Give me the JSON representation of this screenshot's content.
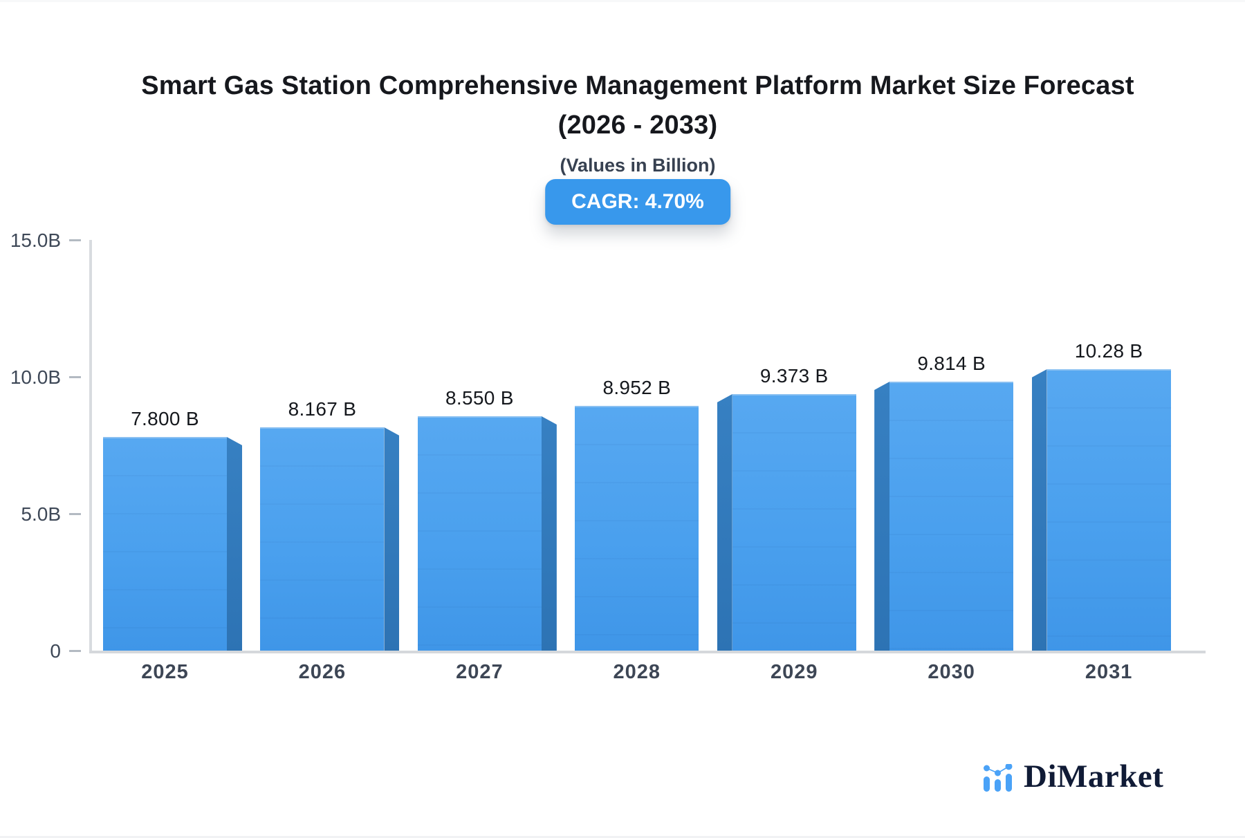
{
  "title": {
    "line1": "Smart Gas Station Comprehensive Management Platform Market Size Forecast",
    "line2": "(2026 - 2033)"
  },
  "subtitle": "(Values in Billion)",
  "badge": {
    "label": "CAGR: 4.70%"
  },
  "logo": {
    "text": "DiMarket",
    "icon": "mini-bar-chart-with-dots"
  },
  "colors": {
    "accent": "#3898ec",
    "badge_bg": "#3898ec",
    "badge_text": "#ffffff",
    "bar_face_top": "#57a8f1",
    "bar_face_mid": "#4aa0ee",
    "bar_face_bottom": "#3f96e8",
    "bar_side_top": "#3780c2",
    "bar_side_bottom": "#2d73b4",
    "axis_line": "#d6d9dd",
    "tick_dash": "#b3bac2",
    "title_text": "#16181d",
    "subtitle_text": "#374151",
    "axis_text": "#3e4857",
    "year_text": "#3d4655",
    "value_text": "#15181d",
    "logo_blue": "#4aa2f7",
    "logo_navy": "#101b36"
  },
  "chart_data": {
    "type": "bar",
    "title": "Smart Gas Station Comprehensive Management Platform Market Size Forecast (2026 - 2033)",
    "subtitle": "(Values in Billion)",
    "cagr": "4.70%",
    "categories": [
      "2025",
      "2026",
      "2027",
      "2028",
      "2029",
      "2030",
      "2031"
    ],
    "values": [
      7.8,
      8.167,
      8.55,
      8.952,
      9.373,
      9.814,
      10.28
    ],
    "value_labels": [
      "7.800 B",
      "8.167 B",
      "8.550 B",
      "8.952 B",
      "9.373 B",
      "9.814 B",
      "10.28 B"
    ],
    "xlabel": "",
    "ylabel": "",
    "ylim": [
      0,
      15
    ],
    "yticks": [
      {
        "value": 15,
        "label": "15.0B"
      },
      {
        "value": 10,
        "label": "10.0B"
      },
      {
        "value": 5,
        "label": "5.0B"
      },
      {
        "value": 0,
        "label": "0"
      }
    ],
    "grid": false,
    "legend_position": "none",
    "bar_style": "3d-perspective-center"
  }
}
